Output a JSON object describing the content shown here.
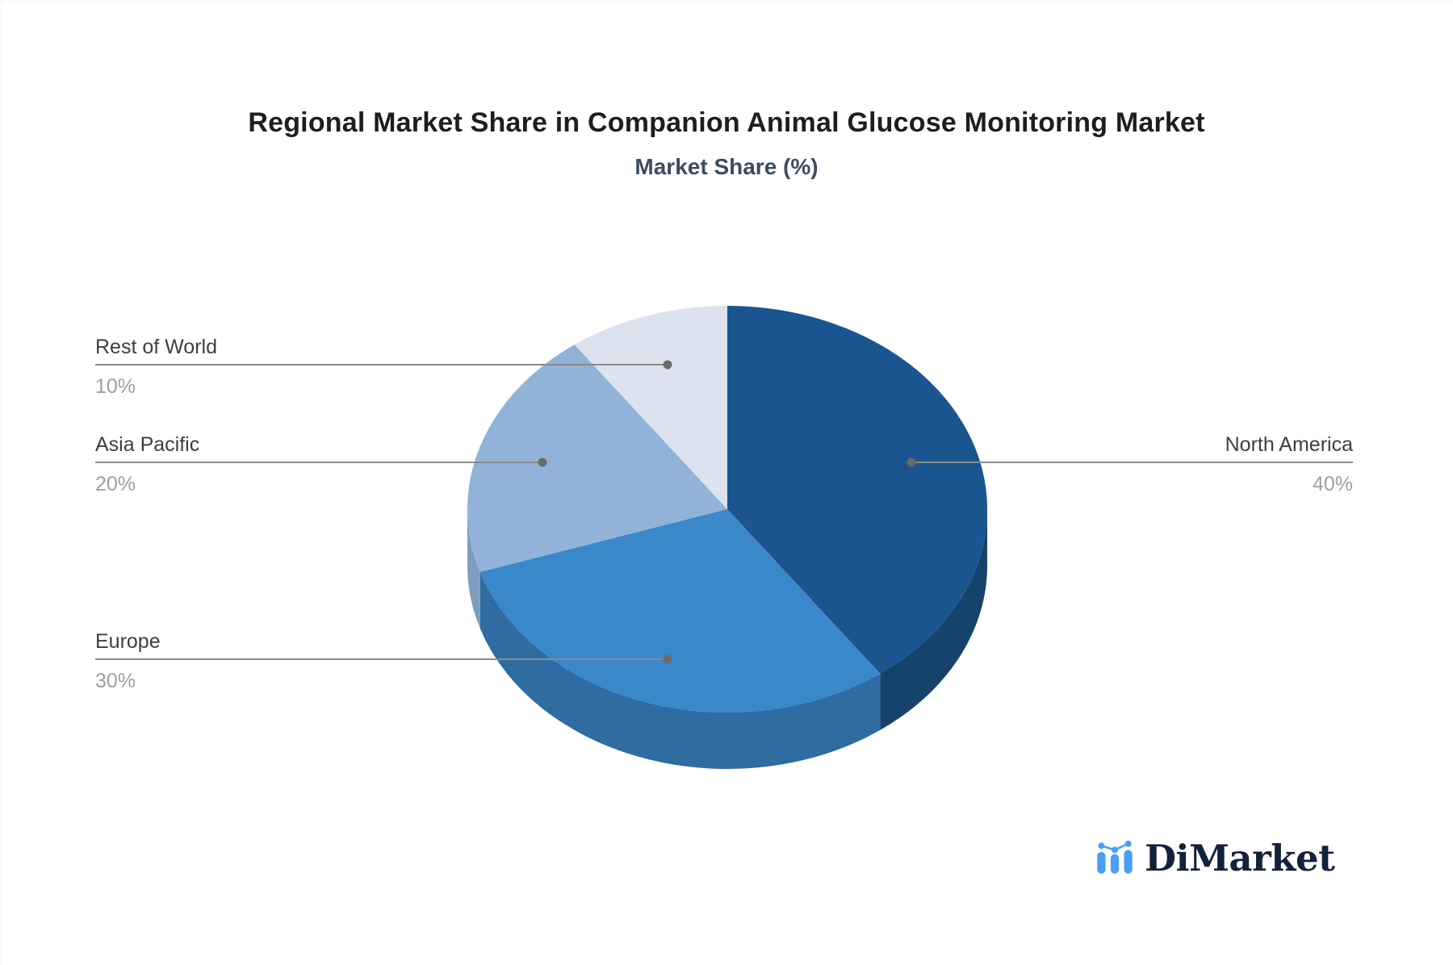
{
  "chart_data": {
    "type": "pie",
    "style": "3d-pie",
    "title": "Regional Market Share in Companion Animal Glucose Monitoring Market",
    "subtitle": "Market Share (%)",
    "legend_position": "callout-labels",
    "direction": "clockwise",
    "start_angle_deg": 0,
    "slices": [
      {
        "id": "north-america",
        "label": "North America",
        "value": 40,
        "value_label": "40%",
        "color": "#1A5590",
        "shade": "#16436B"
      },
      {
        "id": "europe",
        "label": "Europe",
        "value": 30,
        "value_label": "30%",
        "color": "#3A87C9",
        "shade": "#2E6CA1"
      },
      {
        "id": "asia-pacific",
        "label": "Asia Pacific",
        "value": 20,
        "value_label": "20%",
        "color": "#91B3D8",
        "shade": "#7E9DC0"
      },
      {
        "id": "rest-of-world",
        "label": "Rest of World",
        "value": 10,
        "value_label": "10%",
        "color": "#DDE3EE",
        "shade": "#C3CFE2"
      }
    ]
  },
  "brand": {
    "name": "DiMarket",
    "logo_icon": "bar-line-chart-icon",
    "text_color": "#14213D",
    "icon_color": "#49A0F2"
  },
  "colors": {
    "background": "#FFFFFF",
    "title_text": "#1E1E1E",
    "subtitle_text": "#3E4B5F",
    "label_text": "#3A3F45",
    "percent_text": "#9AA0A6",
    "leader_line": "#8A8A8A",
    "leader_dot": "#6A6A6A"
  }
}
